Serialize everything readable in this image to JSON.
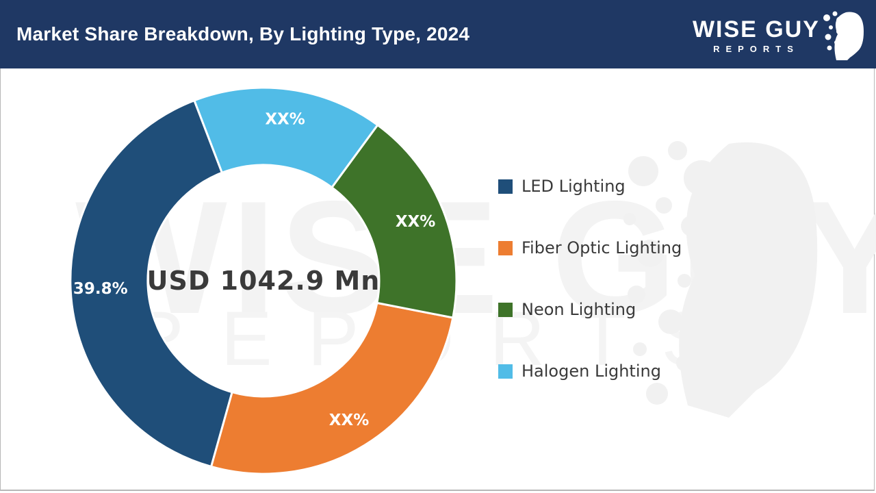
{
  "header": {
    "title": "Market Share Breakdown, By Lighting Type, 2024",
    "logo": {
      "line1": "WISE GUY",
      "line2": "REPORTS"
    }
  },
  "watermark": {
    "line1": "WISE GUY",
    "line2": "REPORTS"
  },
  "chart_data": {
    "type": "pie",
    "subtype": "donut",
    "title": "Market Share Breakdown, By Lighting Type, 2024",
    "center_label": "USD 1042.9 Mn",
    "segments": [
      {
        "label": "LED Lighting",
        "value_pct": 39.8,
        "display_label": "39.8%",
        "color": "#1F4E79"
      },
      {
        "label": "Fiber Optic Lighting",
        "value_pct": 26.3,
        "display_label": "XX%",
        "color": "#ED7D31"
      },
      {
        "label": "Neon Lighting",
        "value_pct": 18.0,
        "display_label": "XX%",
        "color": "#3E7329"
      },
      {
        "label": "Halogen Lighting",
        "value_pct": 15.9,
        "display_label": "XX%",
        "color": "#51BCE7"
      }
    ],
    "layout": {
      "start_angle_deg_compass": 339,
      "direction": "counterclockwise",
      "inner_radius_ratio": 0.6,
      "legend_position": "right",
      "label_color": "#ffffff"
    }
  }
}
